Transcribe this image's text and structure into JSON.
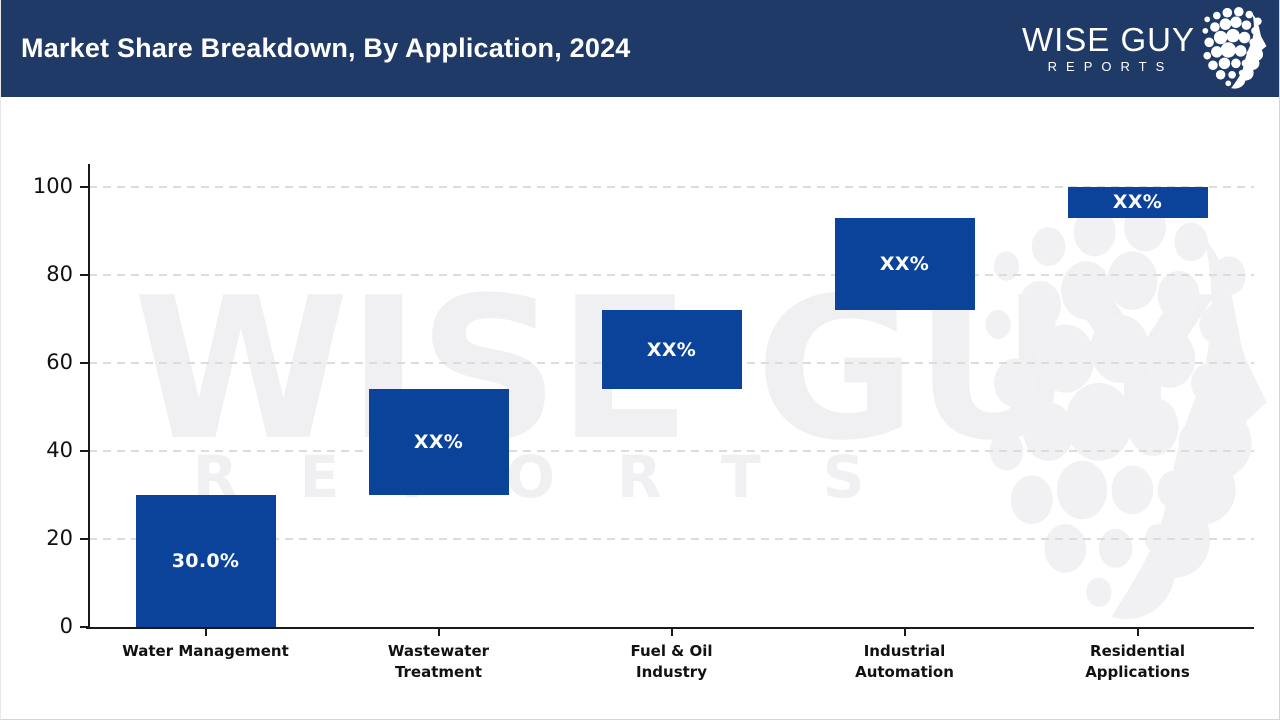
{
  "header": {
    "title": "Market Share Breakdown, By Application, 2024",
    "bg_color": "#1f3a66",
    "logo": {
      "line1": "WISE GUY",
      "line2": "REPORTS"
    }
  },
  "watermark": {
    "line1": "WISE GUY",
    "line2": "REPORTS"
  },
  "chart_data": {
    "type": "bar",
    "subtype": "waterfall",
    "title": "Market Share Breakdown, By Application, 2024",
    "categories": [
      "Water Management",
      "Wastewater Treatment",
      "Fuel & Oil Industry",
      "Industrial Automation",
      "Residential Applications"
    ],
    "category_label_lines": [
      [
        "Water Management"
      ],
      [
        "Wastewater",
        "Treatment"
      ],
      [
        "Fuel & Oil",
        "Industry"
      ],
      [
        "Industrial",
        "Automation"
      ],
      [
        "Residential",
        "Applications"
      ]
    ],
    "segments": [
      {
        "category": "Water Management",
        "start": 0,
        "end": 30,
        "label": "30.0%"
      },
      {
        "category": "Wastewater Treatment",
        "start": 30,
        "end": 54,
        "label": "XX%"
      },
      {
        "category": "Fuel & Oil Industry",
        "start": 54,
        "end": 72,
        "label": "XX%"
      },
      {
        "category": "Industrial Automation",
        "start": 72,
        "end": 93,
        "label": "XX%"
      },
      {
        "category": "Residential Applications",
        "start": 93,
        "end": 100,
        "label": "XX%"
      }
    ],
    "ylim": [
      0,
      100
    ],
    "yticks": [
      0,
      20,
      40,
      60,
      80,
      100
    ],
    "grid": "dashed-horizontal",
    "legend": "none",
    "bar_color": "#0a4399",
    "bar_label_color": "#ffffff",
    "axis_color": "#1a1a1a"
  }
}
